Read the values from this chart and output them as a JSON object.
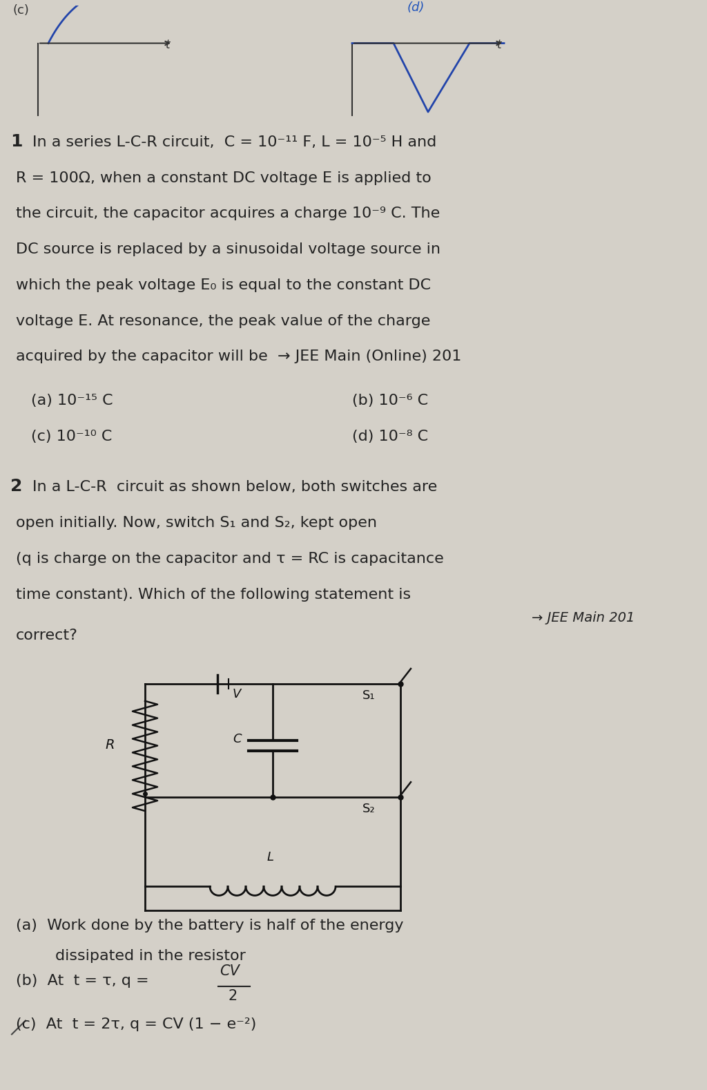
{
  "bg_color": "#d4d0c8",
  "text_color": "#222222",
  "fig_width": 10.24,
  "fig_height": 15.78,
  "top_label_c": "(c)",
  "top_label_d": "(d)",
  "q1_number": "1",
  "q1_text_line1": "In a series L-C-R circuit,  C = 10⁻¹¹ F, L = 10⁻⁵ H and",
  "q1_text_line2": "R = 100Ω, when a constant DC voltage E is applied to",
  "q1_text_line3": "the circuit, the capacitor acquires a charge 10⁻⁹ C. The",
  "q1_text_line4": "DC source is replaced by a sinusoidal voltage source in",
  "q1_text_line5": "which the peak voltage E₀ is equal to the constant DC",
  "q1_text_line6": "voltage E. At resonance, the peak value of the charge",
  "q1_text_line7": "acquired by the capacitor will be  → JEE Main (Online) 201",
  "q1_opt_a": "(a) 10⁻¹⁵ C",
  "q1_opt_b": "(b) 10⁻⁶ C",
  "q1_opt_c": "(c) 10⁻¹⁰ C",
  "q1_opt_d": "(d) 10⁻⁸ C",
  "q2_number": "2",
  "q2_text_line1": "In a L-C-R  circuit as shown below, both switches are",
  "q2_text_line2": "open initially. Now, switch S₁ and S₂, kept open",
  "q2_text_line3": "(q is charge on the capacitor and τ = RC is capacitance",
  "q2_text_line4": "time constant). Which of the following statement is",
  "q2_ref": "→ JEE Main 201",
  "q2_text_line5": "correct?",
  "q2_opt_a": "(a)  Work done by the battery is half of the energy",
  "q2_opt_a2": "        dissipated in the resistor",
  "q2_opt_b_pre": "(b)  At  t = τ, q = ",
  "q2_opt_b_num": "CV",
  "q2_opt_b_den": "2",
  "q2_opt_c": "(c)  At  t = 2τ, q = CV (1 − e⁻²)"
}
